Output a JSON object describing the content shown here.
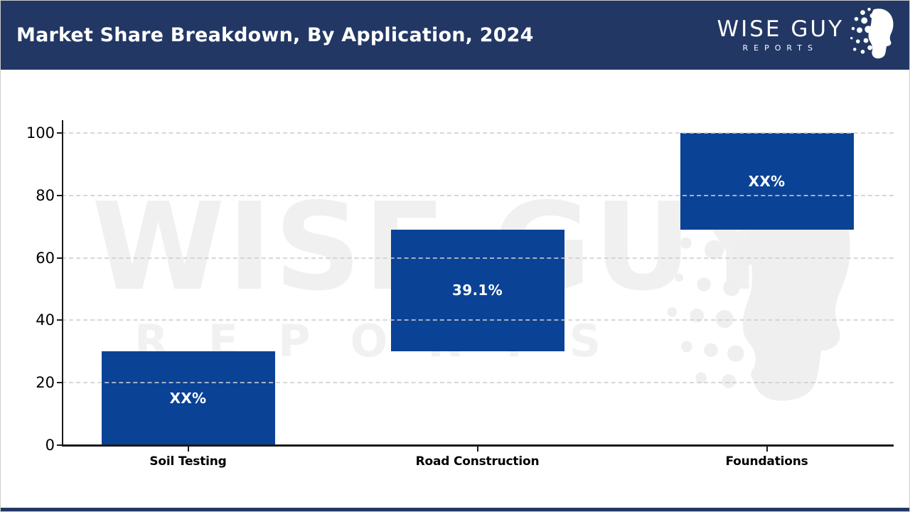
{
  "header": {
    "title": "Market Share Breakdown, By Application, 2024",
    "logo_line1": "WISE GUY",
    "logo_line2": "REPORTS"
  },
  "watermark": {
    "line1": "WISE GUY",
    "line2": "REPORTS"
  },
  "chart_data": {
    "type": "bar",
    "variant": "waterfall",
    "title": "Market Share Breakdown, By Application, 2024",
    "categories": [
      "Soil Testing",
      "Road Construction",
      "Foundations"
    ],
    "segments": [
      {
        "category": "Soil Testing",
        "start": 0,
        "end": 30,
        "label": "XX%"
      },
      {
        "category": "Road Construction",
        "start": 30,
        "end": 69.1,
        "label": "39.1%"
      },
      {
        "category": "Foundations",
        "start": 69.1,
        "end": 100,
        "label": "XX%"
      }
    ],
    "ylim": [
      0,
      100
    ],
    "yticks": [
      0,
      20,
      40,
      60,
      80,
      100
    ],
    "grid": "horizontal-dashed",
    "legend": "none",
    "bar_color": "#0a4296"
  },
  "colors": {
    "header_bg": "#223764",
    "footer_bg": "#223764",
    "bar": "#0a4296",
    "grid": "#d9d9d9",
    "axis": "#1a1a1a",
    "watermark": "#f0f0f0"
  }
}
